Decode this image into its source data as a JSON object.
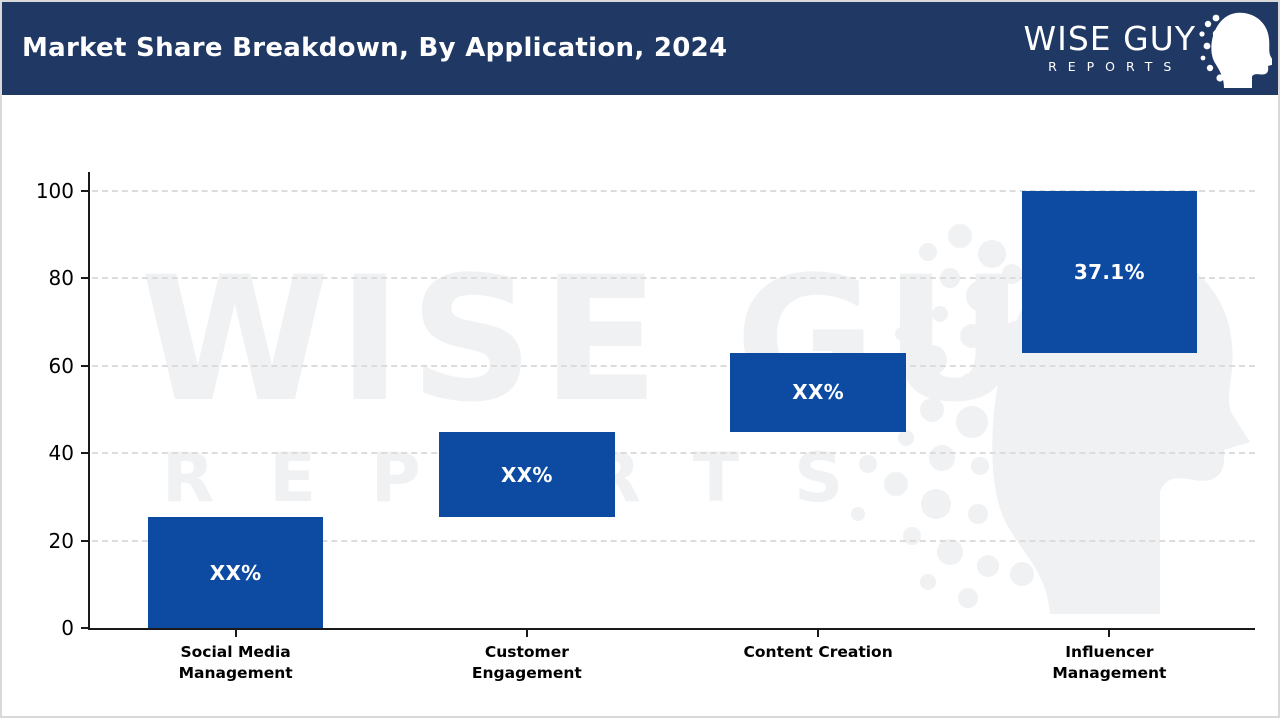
{
  "header": {
    "title": "Market Share Breakdown, By Application, 2024",
    "logo_line1": "WISE GUY",
    "logo_line2": "REPORTS"
  },
  "watermark": {
    "line1": "WISE GUY",
    "line2": "REPORTS"
  },
  "colors": {
    "header_bg": "#1f3864",
    "bar": "#0d4aa2",
    "grid": "#dcdcdc",
    "axis": "#1a1a1a",
    "watermark": "#f0f1f3",
    "frame_border": "#d9d9d9"
  },
  "chart_data": {
    "type": "bar",
    "subtype": "waterfall",
    "title": "Market Share Breakdown, By Application, 2024",
    "xlabel": "",
    "ylabel": "",
    "ylim": [
      0,
      100
    ],
    "yticks": [
      0,
      20,
      40,
      60,
      80,
      100
    ],
    "grid": true,
    "legend": false,
    "categories": [
      "Social Media Management",
      "Customer Engagement",
      "Content Creation",
      "Influencer Management"
    ],
    "segments": [
      {
        "category": "Social Media Management",
        "label_lines": [
          "Social Media",
          "Management"
        ],
        "start": 0,
        "end": 25.3,
        "value_label": "XX%"
      },
      {
        "category": "Customer Engagement",
        "label_lines": [
          "Customer",
          "Engagement"
        ],
        "start": 25.3,
        "end": 44.9,
        "value_label": "XX%"
      },
      {
        "category": "Content Creation",
        "label_lines": [
          "Content Creation"
        ],
        "start": 44.9,
        "end": 62.9,
        "value_label": "XX%"
      },
      {
        "category": "Influencer Management",
        "label_lines": [
          "Influencer",
          "Management"
        ],
        "start": 62.9,
        "end": 100,
        "value_label": "37.1%"
      }
    ]
  }
}
